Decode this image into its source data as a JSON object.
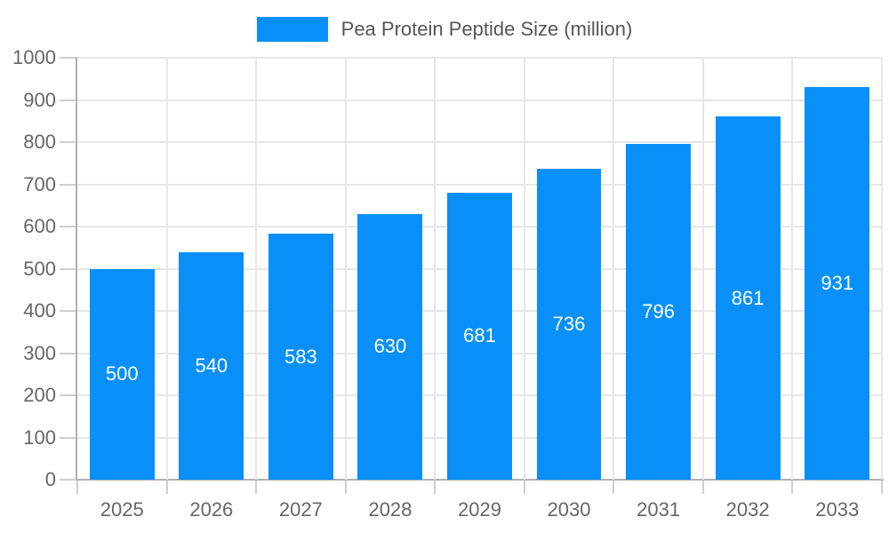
{
  "legend": {
    "label": "Pea Protein Peptide Size (million)"
  },
  "colors": {
    "bar": "#0890f8",
    "grid": "#e7e7e7",
    "axis": "#b0b0b0",
    "tick": "#cfcfcf",
    "axis_label": "#666666",
    "legend_text": "#555555",
    "bar_label": "#ffffff",
    "background": "#ffffff"
  },
  "chart_data": {
    "type": "bar",
    "title": "Pea Protein Peptide Size (million)",
    "categories": [
      "2025",
      "2026",
      "2027",
      "2028",
      "2029",
      "2030",
      "2031",
      "2032",
      "2033"
    ],
    "values": [
      500,
      540,
      583,
      630,
      681,
      736,
      796,
      861,
      931
    ],
    "xlabel": "",
    "ylabel": "",
    "ylim": [
      0,
      1000
    ],
    "ytick_step": 100,
    "grid": true,
    "legend_position": "top-center",
    "value_labels": "inside-center"
  }
}
